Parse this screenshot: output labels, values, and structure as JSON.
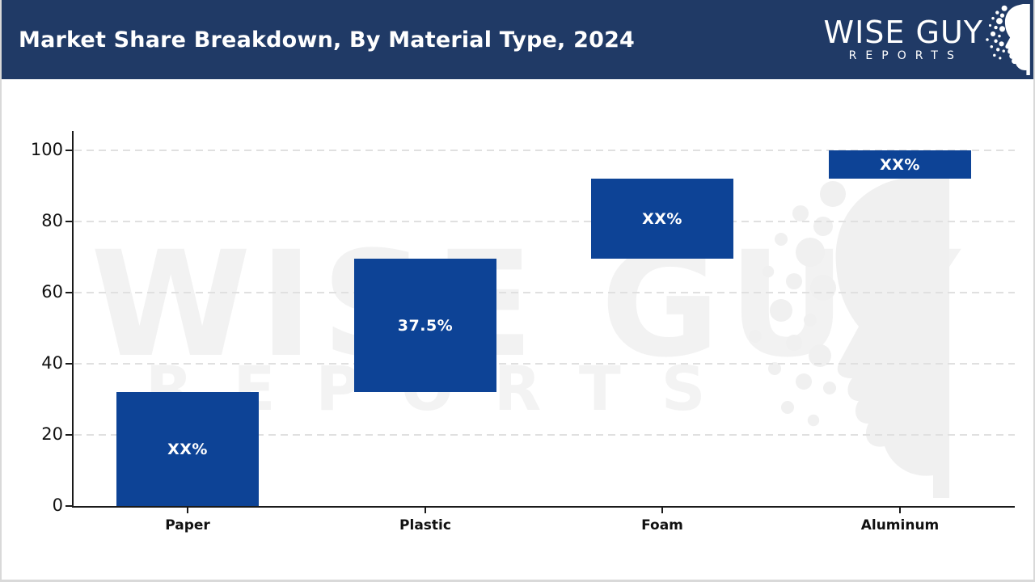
{
  "header": {
    "title": "Market Share Breakdown, By Material Type, 2024",
    "logo": {
      "line1": "WISE GUY",
      "line2": "REPORTS"
    }
  },
  "watermark": {
    "line1": "WISE GUY",
    "line2": "REPORTS"
  },
  "colors": {
    "header_bg": "#203a66",
    "bar": "#0d4396",
    "bar_label": "#ffffff",
    "grid": "#e0e0e0",
    "axis": "#1a1a1a",
    "watermark": "#f2f2f2",
    "page_border": "#d9d9d9"
  },
  "chart_data": {
    "type": "bar",
    "subtype": "waterfall-floating-bars",
    "title": "Market Share Breakdown, By Material Type, 2024",
    "categories": [
      "Paper",
      "Plastic",
      "Foam",
      "Aluminum"
    ],
    "segments": [
      {
        "category": "Paper",
        "start": 0,
        "end": 32,
        "label": "XX%"
      },
      {
        "category": "Plastic",
        "start": 32,
        "end": 69.5,
        "label": "37.5%"
      },
      {
        "category": "Foam",
        "start": 69.5,
        "end": 92,
        "label": "XX%"
      },
      {
        "category": "Aluminum",
        "start": 92,
        "end": 100,
        "label": "XX%"
      }
    ],
    "yticks": [
      0,
      20,
      40,
      60,
      80,
      100
    ],
    "ylim": [
      0,
      100
    ],
    "xlabel": "",
    "ylabel": "",
    "grid": "horizontal-dashed",
    "legend": "none"
  }
}
